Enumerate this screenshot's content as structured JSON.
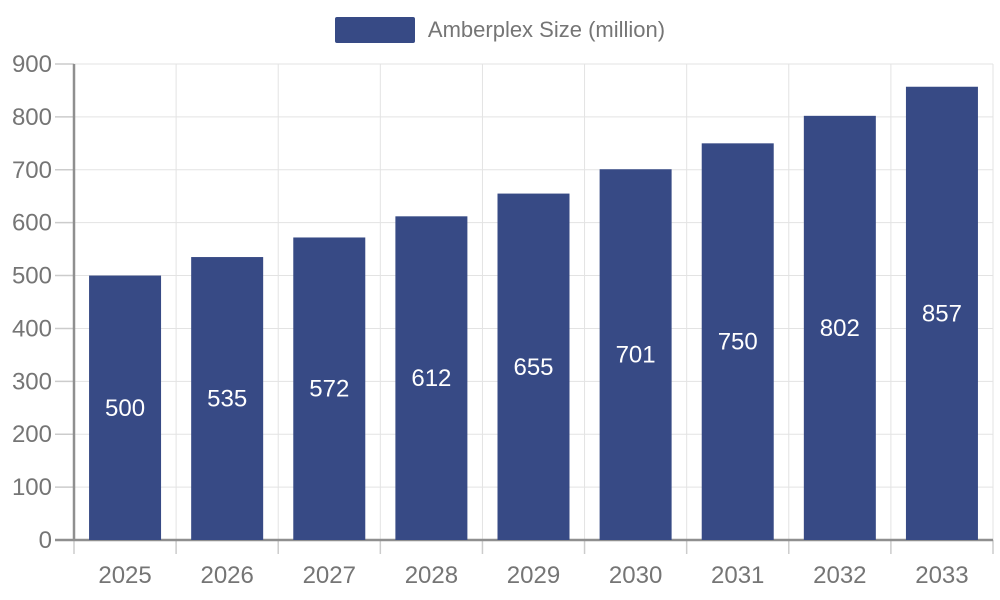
{
  "legend": {
    "label": "Amberplex Size (million)"
  },
  "colors": {
    "bar": "#374a85",
    "bar_label": "#ffffff",
    "axis_line": "#8f8f8f",
    "tick": "#cccccc",
    "grid": "#e3e3e3",
    "axis_label": "#757575",
    "background": "#ffffff"
  },
  "chart_data": {
    "type": "bar",
    "title": "",
    "series_name": "Amberplex Size (million)",
    "categories": [
      "2025",
      "2026",
      "2027",
      "2028",
      "2029",
      "2030",
      "2031",
      "2032",
      "2033"
    ],
    "values": [
      500,
      535,
      572,
      612,
      655,
      701,
      750,
      802,
      857
    ],
    "bar_value_labels": [
      "500",
      "535",
      "572",
      "612",
      "655",
      "701",
      "750",
      "802",
      "857"
    ],
    "xlabel": "",
    "ylabel": "",
    "ylim": [
      0,
      900
    ],
    "ytick_interval": 100,
    "ytick_labels": [
      "0",
      "100",
      "200",
      "300",
      "400",
      "500",
      "600",
      "700",
      "800",
      "900"
    ],
    "grid": true,
    "legend_position": "top-center"
  }
}
